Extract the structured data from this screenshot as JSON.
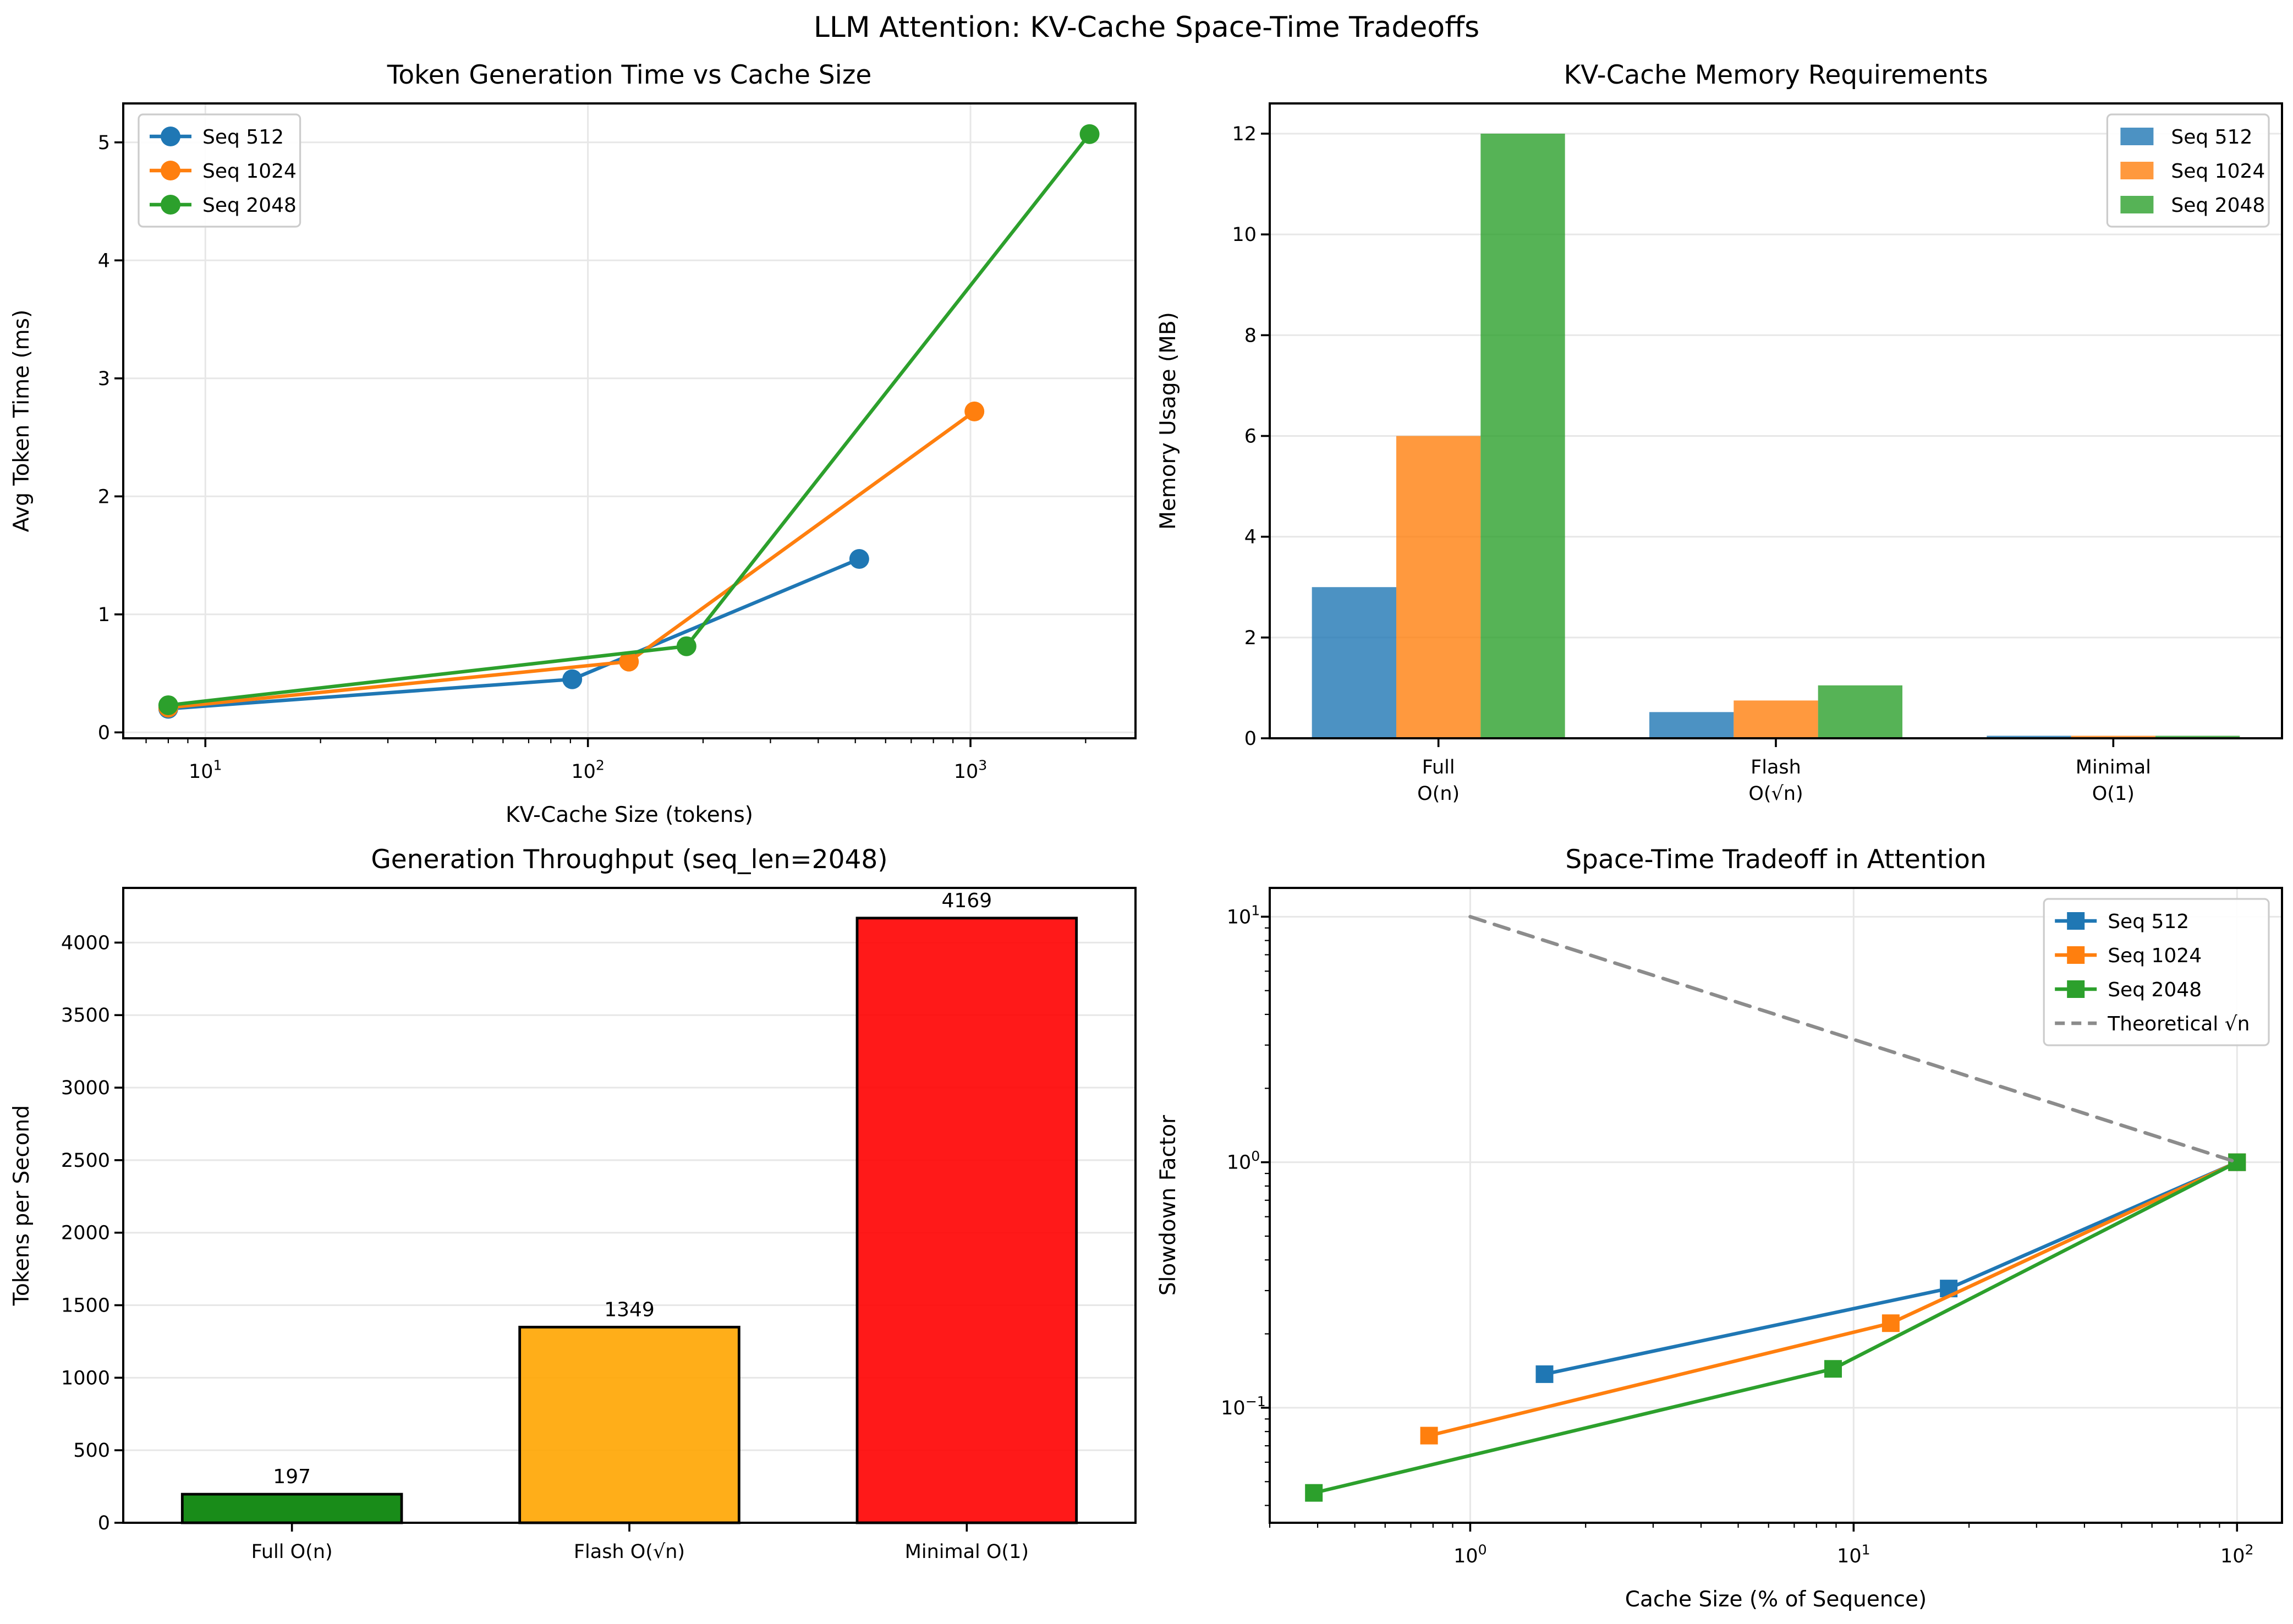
{
  "figure": {
    "suptitle": "LLM Attention: KV-Cache Space-Time Tradeoffs",
    "background": "#ffffff"
  },
  "chart_data": [
    {
      "id": "token-time",
      "type": "line",
      "title": "Token Generation Time vs Cache Size",
      "xlabel": "KV-Cache Size (tokens)",
      "ylabel": "Avg Token Time (ms)",
      "xscale": "log",
      "yscale": "linear",
      "xlim": [
        6.1,
        2700
      ],
      "ylim": [
        -0.05,
        5.33
      ],
      "xticks": [
        10,
        100,
        1000
      ],
      "xtick_format": "pow10",
      "yticks": [
        0,
        1,
        2,
        3,
        4,
        5
      ],
      "grid": "both",
      "legend": {
        "position": "upper-left"
      },
      "series": [
        {
          "name": "Seq 512",
          "color": "#1f77b4",
          "marker": "circle",
          "x": [
            8,
            91,
            512
          ],
          "y": [
            0.2,
            0.45,
            1.47
          ]
        },
        {
          "name": "Seq 1024",
          "color": "#ff7f0e",
          "marker": "circle",
          "x": [
            8,
            128,
            1024
          ],
          "y": [
            0.21,
            0.6,
            2.72
          ]
        },
        {
          "name": "Seq 2048",
          "color": "#2ca02c",
          "marker": "circle",
          "x": [
            8,
            181,
            2048
          ],
          "y": [
            0.23,
            0.73,
            5.07
          ]
        }
      ]
    },
    {
      "id": "memory",
      "type": "grouped-bar",
      "title": "KV-Cache Memory Requirements",
      "xlabel": "",
      "ylabel": "Memory Usage (MB)",
      "categories": [
        "Full\nO(n)",
        "Flash\nO(√n)",
        "Minimal\nO(1)"
      ],
      "ylim": [
        0,
        12.6
      ],
      "yticks": [
        0,
        2,
        4,
        6,
        8,
        10,
        12
      ],
      "grid": "y",
      "bar_width": 0.25,
      "bar_alpha": 0.8,
      "legend": {
        "position": "upper-right",
        "kind": "patch"
      },
      "series": [
        {
          "name": "Seq 512",
          "color": "#1f77b4",
          "values": [
            3.0,
            0.52,
            0.05
          ]
        },
        {
          "name": "Seq 1024",
          "color": "#ff7f0e",
          "values": [
            6.0,
            0.75,
            0.05
          ]
        },
        {
          "name": "Seq 2048",
          "color": "#2ca02c",
          "values": [
            12.0,
            1.05,
            0.05
          ]
        }
      ]
    },
    {
      "id": "throughput",
      "type": "bar",
      "title": "Generation Throughput (seq_len=2048)",
      "xlabel": "",
      "ylabel": "Tokens per Second",
      "categories": [
        "Full O(n)",
        "Flash O(√n)",
        "Minimal O(1)"
      ],
      "values": [
        197,
        1349,
        4169
      ],
      "value_labels": [
        "197",
        "1349",
        "4169"
      ],
      "bar_colors": [
        "#008000",
        "#ffa500",
        "#ff0000"
      ],
      "bar_edge_color": "#000000",
      "bar_alpha": 0.9,
      "bar_width": 0.65,
      "ylim": [
        0,
        4377
      ],
      "yticks": [
        0,
        500,
        1000,
        1500,
        2000,
        2500,
        3000,
        3500,
        4000
      ],
      "grid": "y"
    },
    {
      "id": "tradeoff",
      "type": "line",
      "title": "Space-Time Tradeoff in Attention",
      "xlabel": "Cache Size (% of Sequence)",
      "ylabel": "Slowdown Factor",
      "xscale": "log",
      "yscale": "log",
      "xlim": [
        0.3,
        131
      ],
      "ylim": [
        0.034,
        13.1
      ],
      "xticks": [
        1,
        10,
        100
      ],
      "xtick_format": "pow10",
      "yticks": [
        0.1,
        1,
        10
      ],
      "ytick_format": "pow10",
      "grid": "both",
      "legend": {
        "position": "upper-right"
      },
      "series": [
        {
          "name": "Seq 512",
          "color": "#1f77b4",
          "marker": "square",
          "x": [
            1.5625,
            17.7,
            100
          ],
          "y": [
            0.137,
            0.306,
            1.0
          ]
        },
        {
          "name": "Seq 1024",
          "color": "#ff7f0e",
          "marker": "square",
          "x": [
            0.781,
            12.5,
            100
          ],
          "y": [
            0.077,
            0.221,
            1.0
          ]
        },
        {
          "name": "Seq 2048",
          "color": "#2ca02c",
          "marker": "square",
          "x": [
            0.391,
            8.84,
            100
          ],
          "y": [
            0.045,
            0.144,
            1.0
          ]
        },
        {
          "name": "Theoretical √n",
          "color": "#8c8c8c",
          "marker": "none",
          "dash": true,
          "x": [
            1,
            100
          ],
          "y": [
            10,
            1
          ]
        }
      ]
    }
  ]
}
